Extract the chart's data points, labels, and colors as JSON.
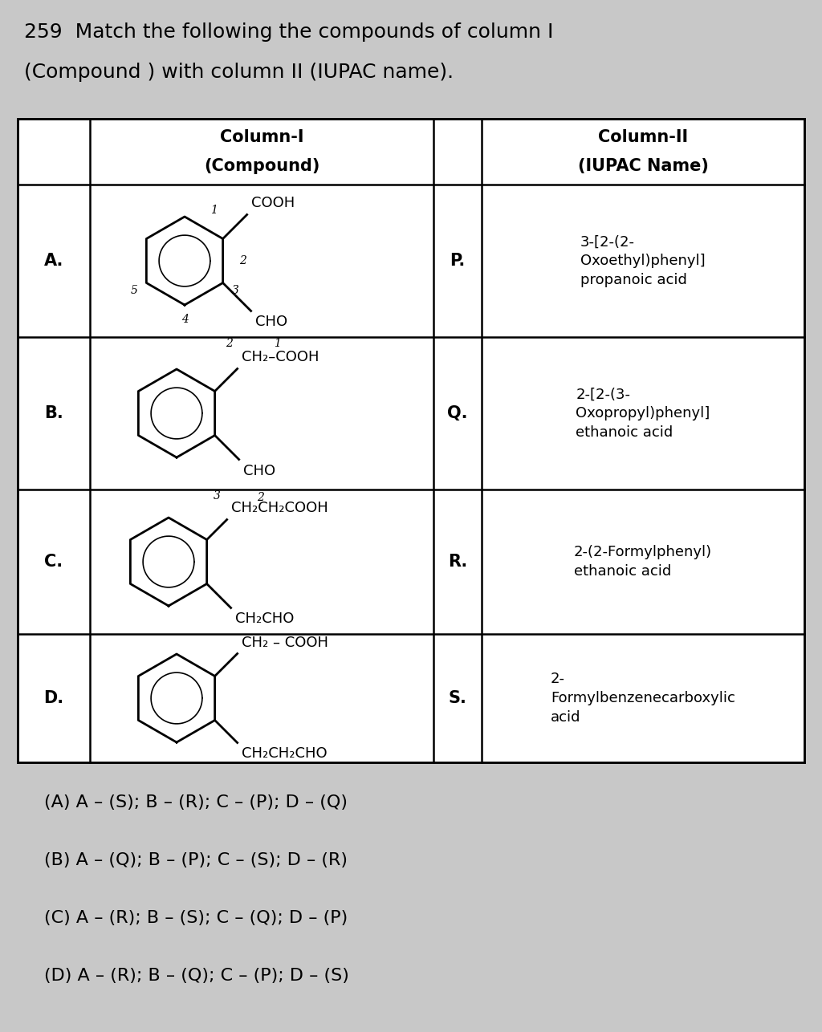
{
  "title_line1": "259  Match the following the compounds of column I",
  "title_line2": "(Compound ) with column II (IUPAC name).",
  "bg_color": "#c8c8c8",
  "col1_header1": "Column-I",
  "col1_header2": "(Compound)",
  "col2_header1": "Column-II",
  "col2_header2": "(IUPAC Name)",
  "row_labels_left": [
    "A.",
    "B.",
    "C.",
    "D."
  ],
  "row_labels_right": [
    "P.",
    "Q.",
    "R.",
    "S."
  ],
  "col2_text_P": "3-[2-(2-\nOxoethyl)phenyl]\npropanoic acid",
  "col2_text_Q": "2-[2-(3-\nOxopropyl)phenyl]\nethanoic acid",
  "col2_text_R": "2-(2-Formylphenyl)\nethanoic acid",
  "col2_text_S": "2-\nFormylbenzenecarboxylic\nacid",
  "compound_A_top": "COOH",
  "compound_A_bot": "CHO",
  "compound_B_top": "CH₂–COOH",
  "compound_B_bot": "CHO",
  "compound_B_num_top": "2",
  "compound_B_num_top2": "1",
  "compound_C_top": "CH₂CH₂COOH",
  "compound_C_bot": "CH₂CHO",
  "compound_C_num1": "3",
  "compound_C_num2": "2",
  "compound_D_top": "CH₂ – COOH",
  "compound_D_bot": "CH₂CH₂CHO",
  "options": [
    "(A) A – (S); B – (R); C – (P); D – (Q)",
    "(B) A – (Q); B – (P); C – (S); D – (R)",
    "(C) A – (R); B – (S); C – (Q); D – (P)",
    "(D) A – (R); B – (Q); C – (P); D – (S)"
  ]
}
